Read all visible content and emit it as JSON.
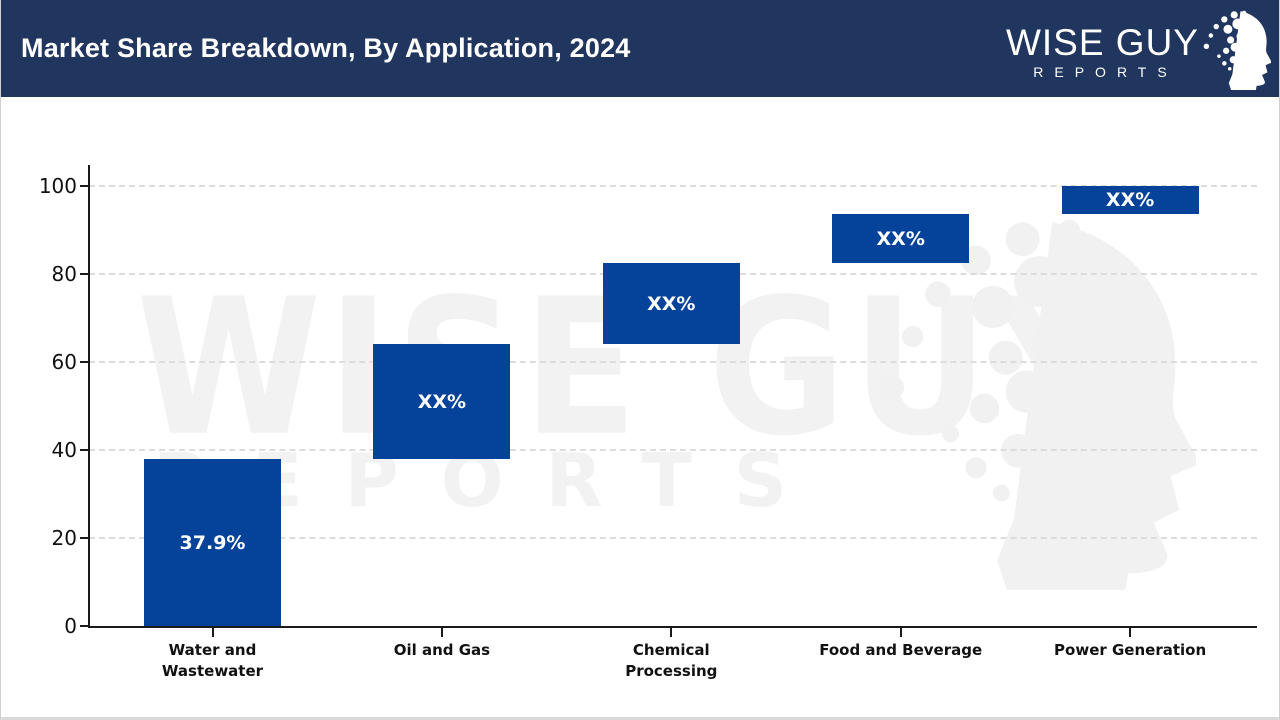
{
  "header": {
    "title": "Market Share Breakdown, By Application, 2024",
    "logo": {
      "line1": "WISE GUY",
      "line2": "REPORTS"
    }
  },
  "watermark": {
    "line1": "WISE GUY",
    "line2": "REPORTS"
  },
  "colors": {
    "header_bg": "#21365e",
    "bar": "#05439a",
    "bar_label": "#ffffff",
    "grid": "#dcdcdc",
    "axis": "#1a1a1a",
    "watermark": "#f2f2f2"
  },
  "chart_data": {
    "type": "bar",
    "subtype": "waterfall",
    "title": "Market Share Breakdown, By Application, 2024",
    "categories": [
      "Water and Wastewater",
      "Oil and Gas",
      "Chemical Processing",
      "Food and Beverage",
      "Power Generation"
    ],
    "category_lines": [
      [
        "Water and",
        "Wastewater"
      ],
      [
        "Oil and Gas"
      ],
      [
        "Chemical",
        "Processing"
      ],
      [
        "Food and Beverage"
      ],
      [
        "Power Generation"
      ]
    ],
    "segments": [
      {
        "category": "Water and Wastewater",
        "start": 0,
        "end": 37.9,
        "value": 37.9,
        "label": "37.9%"
      },
      {
        "category": "Oil and Gas",
        "start": 37.9,
        "end": 64.1,
        "value": 26.2,
        "label": "XX%"
      },
      {
        "category": "Chemical Processing",
        "start": 64.1,
        "end": 82.4,
        "value": 18.3,
        "label": "XX%"
      },
      {
        "category": "Food and Beverage",
        "start": 82.4,
        "end": 93.7,
        "value": 11.3,
        "label": "XX%"
      },
      {
        "category": "Power Generation",
        "start": 93.7,
        "end": 100.0,
        "value": 6.3,
        "label": "XX%"
      }
    ],
    "xlabel": "",
    "ylabel": "",
    "ylim": [
      0,
      104.8
    ],
    "yticks": [
      0,
      20,
      40,
      60,
      80,
      100
    ],
    "grid": "horizontal-dashed",
    "legend": null,
    "bar_color": "#05439a",
    "label_color": "#ffffff"
  }
}
